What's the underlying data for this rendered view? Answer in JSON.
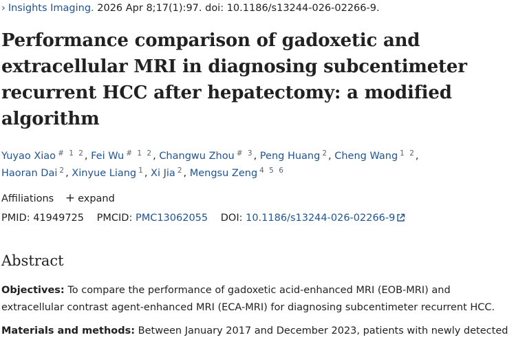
{
  "citation": {
    "journal": "Insights Imaging.",
    "details": "2026 Apr 8;17(1):97. doi: 10.1186/s13244-026-02266-9."
  },
  "title": "Performance comparison of gadoxetic and extracellular MRI in diagnosing subcentimeter recurrent HCC after hepatectomy: a modified algorithm",
  "authors": [
    {
      "name": "Yuyao Xiao",
      "sup": "# 1 2"
    },
    {
      "name": "Fei Wu",
      "sup": "# 1 2"
    },
    {
      "name": "Changwu Zhou",
      "sup": "# 3"
    },
    {
      "name": "Peng Huang",
      "sup": "2"
    },
    {
      "name": "Cheng Wang",
      "sup": "1 2"
    },
    {
      "name": "Haoran Dai",
      "sup": "2"
    },
    {
      "name": "Xinyue Liang",
      "sup": "1"
    },
    {
      "name": "Xi Jia",
      "sup": "2"
    },
    {
      "name": "Mengsu Zeng",
      "sup": "4 5 6"
    }
  ],
  "affiliations": {
    "label": "Affiliations",
    "toggle": "expand"
  },
  "identifiers": {
    "pmid_label": "PMID:",
    "pmid": "41949725",
    "pmcid_label": "PMCID:",
    "pmcid": "PMC13062055",
    "doi_label": "DOI:",
    "doi": "10.1186/s13244-026-02266-9"
  },
  "abstract": {
    "heading": "Abstract",
    "objectives_label": "Objectives:",
    "objectives_text": "To compare the performance of gadoxetic acid-enhanced MRI (EOB-MRI) and extracellular contrast agent-enhanced MRI (ECA-MRI) for diagnosing subcentimeter recurrent HCC.",
    "methods_label": "Materials and methods:",
    "methods_text": "Between January 2017 and December 2023, patients with newly detected"
  },
  "colors": {
    "link": "#205493",
    "text": "#212121"
  }
}
